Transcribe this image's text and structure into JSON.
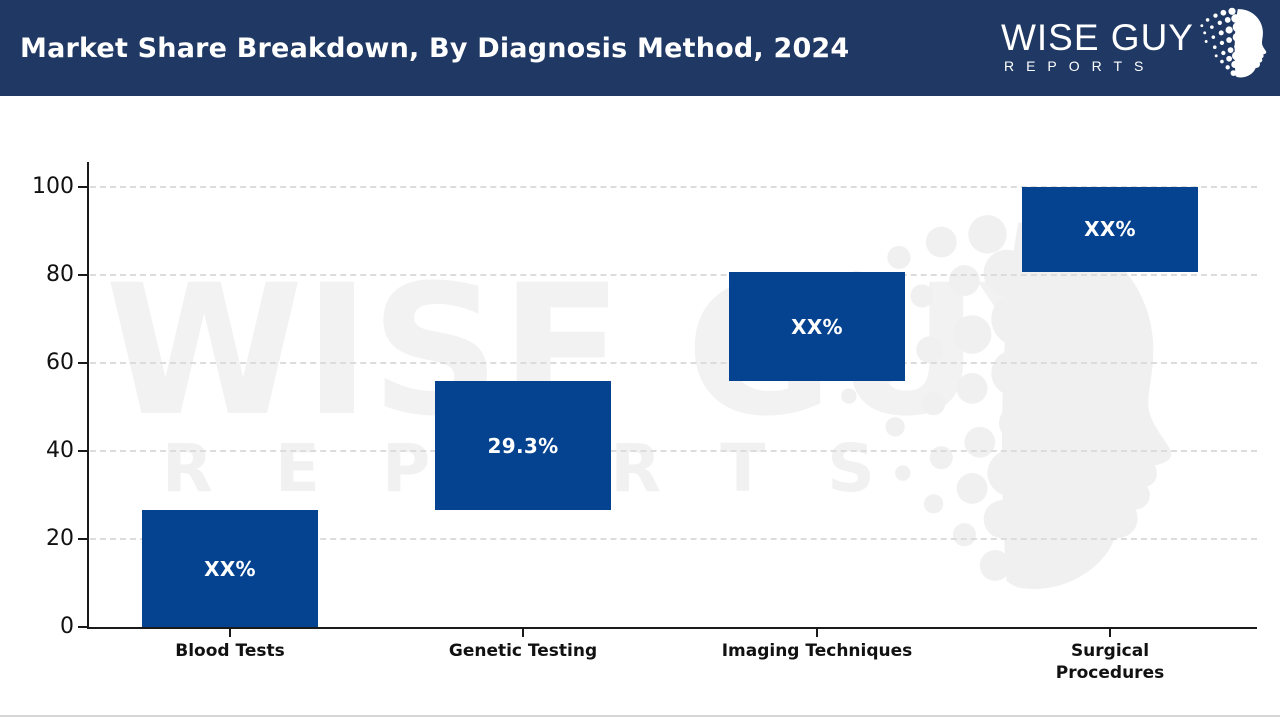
{
  "page": {
    "title": "Market Share Breakdown, By Diagnosis Method, 2024",
    "header_bg": "#1f3864"
  },
  "logo": {
    "line1": "WISE GUY",
    "line2": "REPORTS"
  },
  "watermark": {
    "line1": "WISE GUY",
    "line2": "REPORTS"
  },
  "chart_data": {
    "type": "bar",
    "subtype": "waterfall",
    "title": "Market Share Breakdown, By Diagnosis Method, 2024",
    "xlabel": "",
    "ylabel": "",
    "categories": [
      "Blood Tests",
      "Genetic Testing",
      "Imaging Techniques",
      "Surgical Procedures"
    ],
    "category_label_lines": [
      [
        "Blood Tests"
      ],
      [
        "Genetic Testing"
      ],
      [
        "Imaging Techniques"
      ],
      [
        "Surgical",
        "Procedures"
      ]
    ],
    "segments": [
      {
        "category": "Blood Tests",
        "start": 0,
        "end": 26.5,
        "value": 26.5,
        "label": "XX%"
      },
      {
        "category": "Genetic Testing",
        "start": 26.5,
        "end": 55.8,
        "value": 29.3,
        "label": "29.3%"
      },
      {
        "category": "Imaging Techniques",
        "start": 55.8,
        "end": 80.7,
        "value": 24.9,
        "label": "XX%"
      },
      {
        "category": "Surgical Procedures",
        "start": 80.7,
        "end": 100,
        "value": 19.3,
        "label": "XX%"
      }
    ],
    "y_ticks": [
      0,
      20,
      40,
      60,
      80,
      100
    ],
    "ylim": [
      0,
      105
    ],
    "grid": "horizontal-dashed",
    "legend": "none",
    "bar_color": "#05428f",
    "bar_label_color": "#ffffff",
    "axis_color": "#1a1a1a",
    "gridline_color": "#dcdcdc"
  }
}
